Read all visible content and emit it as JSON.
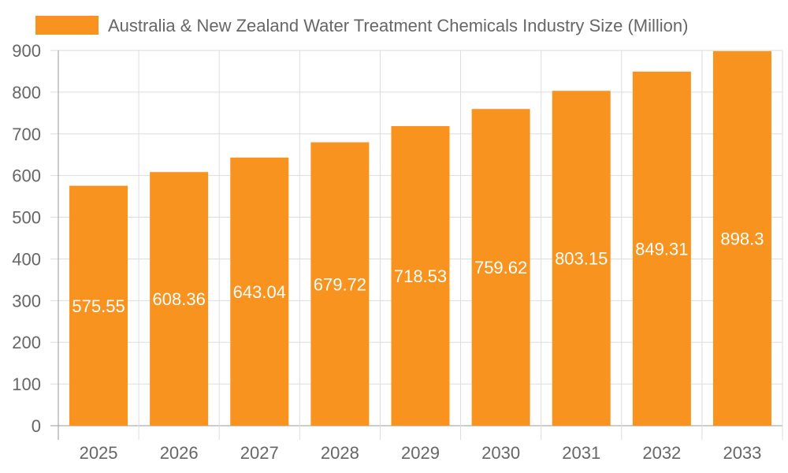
{
  "chart_data": {
    "type": "bar",
    "categories": [
      "2025",
      "2026",
      "2027",
      "2028",
      "2029",
      "2030",
      "2031",
      "2032",
      "2033"
    ],
    "series": [
      {
        "name": "Australia & New Zealand Water Treatment Chemicals Industry Size (Million)",
        "values": [
          575.55,
          608.36,
          643.04,
          679.72,
          718.53,
          759.62,
          803.15,
          849.31,
          898.3
        ],
        "color": "#F7931E"
      }
    ],
    "data_labels": [
      "575.55",
      "608.36",
      "643.04",
      "679.72",
      "718.53",
      "759.62",
      "803.15",
      "849.31",
      "898.3"
    ],
    "ylim": [
      0,
      900
    ],
    "yticks": [
      0,
      100,
      200,
      300,
      400,
      500,
      600,
      700,
      800,
      900
    ],
    "xlabel": "",
    "ylabel": "",
    "grid": true,
    "legend_position": "top"
  }
}
